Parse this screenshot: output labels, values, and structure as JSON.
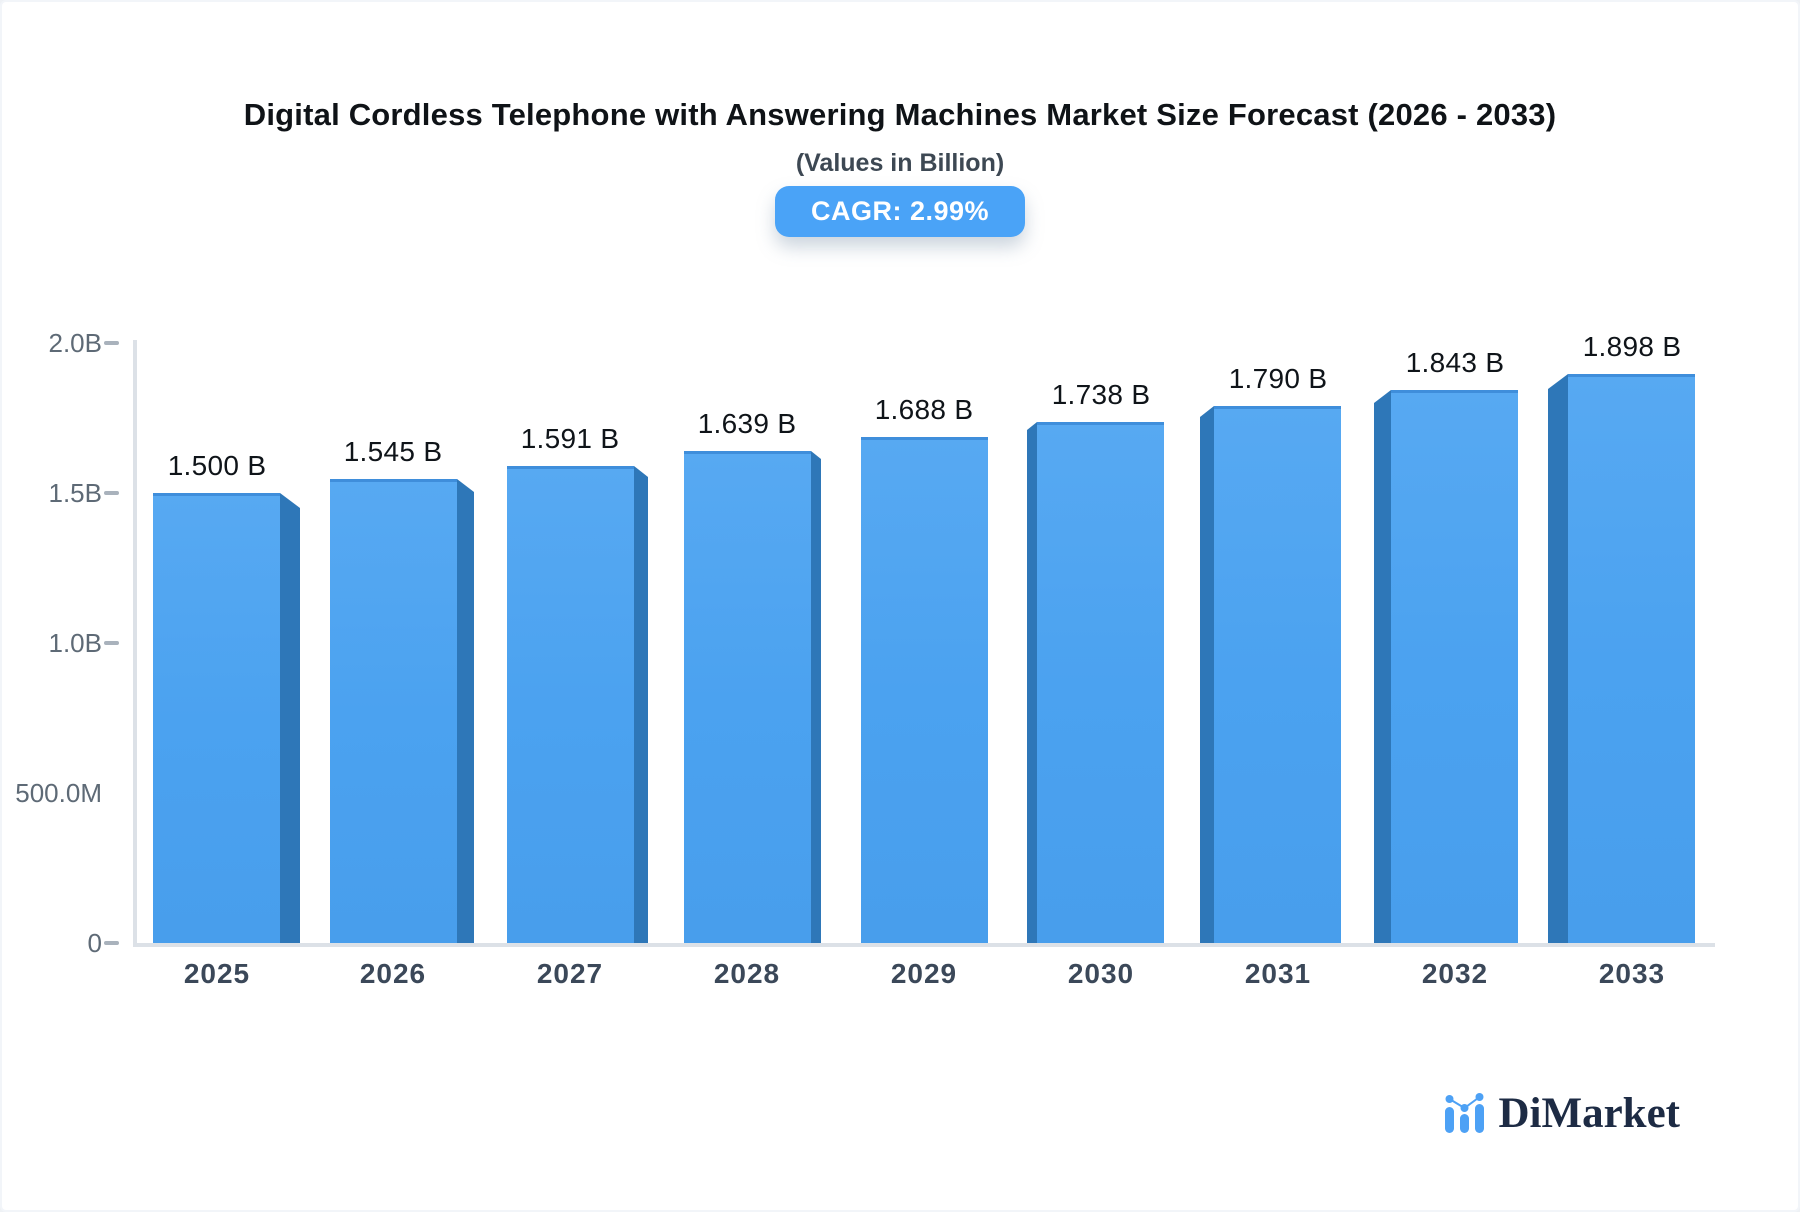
{
  "header": {
    "title": "Digital Cordless Telephone with Answering Machines Market Size Forecast (2026 - 2033)",
    "subtitle": "(Values in Billion)",
    "cagr_badge": "CAGR: 2.99%"
  },
  "chart_data": {
    "type": "bar",
    "title": "Digital Cordless Telephone with Answering Machines Market Size Forecast (2026 - 2033)",
    "subtitle": "(Values in Billion)",
    "cagr_percent": 2.99,
    "categories": [
      "2025",
      "2026",
      "2027",
      "2028",
      "2029",
      "2030",
      "2031",
      "2032",
      "2033"
    ],
    "values": [
      1.5,
      1.545,
      1.591,
      1.639,
      1.688,
      1.738,
      1.79,
      1.843,
      1.898
    ],
    "value_labels": [
      "1.500 B",
      "1.545 B",
      "1.591 B",
      "1.639 B",
      "1.688 B",
      "1.738 B",
      "1.790 B",
      "1.843 B",
      "1.898 B"
    ],
    "unit": "Billion",
    "xlabel": "",
    "ylabel": "",
    "ylim": [
      0,
      2
    ],
    "grid": false,
    "legend": "none",
    "y_ticks": [
      {
        "value": 2.0,
        "label": "2.0B",
        "dash": true
      },
      {
        "value": 1.5,
        "label": "1.5B",
        "dash": true
      },
      {
        "value": 1.0,
        "label": "1.0B",
        "dash": true
      },
      {
        "value": 0.5,
        "label": "500.0M",
        "dash": false
      },
      {
        "value": 0.0,
        "label": "0",
        "dash": true
      }
    ],
    "bar_color": "#4aa2f1",
    "bar_side_color": "#2e77b8",
    "style": "3d-perspective-center"
  },
  "branding": {
    "logo_text": "DiMarket",
    "logo_icon": "bar-chart-logo-icon",
    "logo_color": "#4da1f5",
    "logo_text_color": "#1d2b44"
  },
  "colors": {
    "accent_blue": "#4aa3f7",
    "axis_gray": "#dce1e7",
    "tick_gray": "#a9b2bc",
    "label_gray": "#5e6a76"
  }
}
